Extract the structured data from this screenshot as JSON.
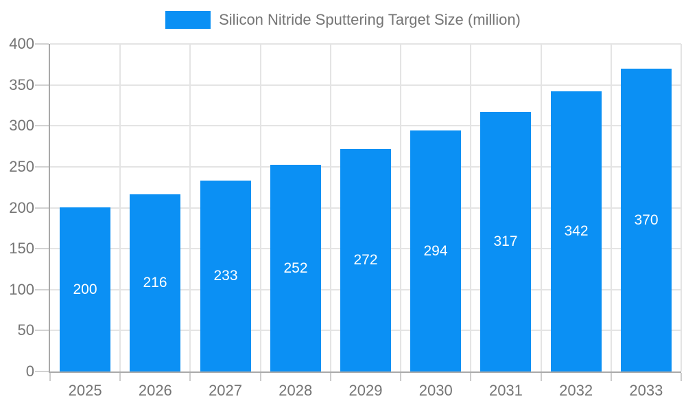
{
  "chart_data": {
    "type": "bar",
    "title": "Silicon Nitride Sputtering Target Size (million)",
    "categories": [
      "2025",
      "2026",
      "2027",
      "2028",
      "2029",
      "2030",
      "2031",
      "2032",
      "2033"
    ],
    "values": [
      200,
      216,
      233,
      252,
      272,
      294,
      317,
      342,
      370
    ],
    "xlabel": "",
    "ylabel": "",
    "ylim": [
      0,
      400
    ],
    "yticks": [
      0,
      50,
      100,
      150,
      200,
      250,
      300,
      350,
      400
    ],
    "grid": true,
    "bar_labels_visible": true,
    "legend": {
      "position": "top",
      "label": "Silicon Nitride Sputtering Target Size (million)"
    },
    "colors": {
      "bar": "#0b90f4",
      "bar_label": "#ffffff",
      "axis_text": "#757575",
      "legend_text": "#757575",
      "grid_line": "#e4e4e4",
      "axis_line": "#a9a9a9"
    }
  }
}
